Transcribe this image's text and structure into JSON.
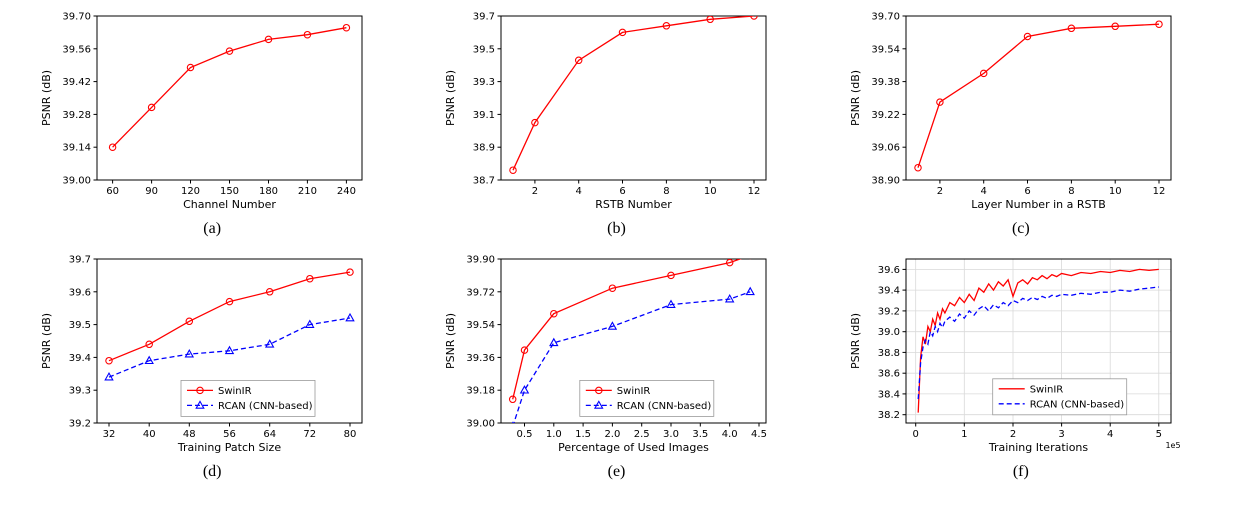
{
  "figure": {
    "background": "#ffffff",
    "axis_color": "#000000",
    "grid_color": "#d9d9d9",
    "legend_edge_color": "#999999"
  },
  "chart_data": [
    {
      "id": "a",
      "caption": "(a)",
      "type": "line",
      "title": "",
      "xlabel": "Channel Number",
      "ylabel": "PSNR (dB)",
      "xlim": [
        48,
        252
      ],
      "ylim": [
        39.0,
        39.7
      ],
      "grid": false,
      "xticks": [
        60,
        90,
        120,
        150,
        180,
        210,
        240
      ],
      "xtick_labels": [
        "60",
        "90",
        "120",
        "150",
        "180",
        "210",
        "240"
      ],
      "yticks": [
        39.0,
        39.14,
        39.28,
        39.42,
        39.56,
        39.7
      ],
      "ytick_labels": [
        "39.00",
        "39.14",
        "39.28",
        "39.42",
        "39.56",
        "39.70"
      ],
      "legend": null,
      "series": [
        {
          "name": "",
          "color": "#ff0000",
          "line": "solid",
          "marker": "circle",
          "x": [
            60,
            90,
            120,
            150,
            180,
            210,
            240
          ],
          "y": [
            39.14,
            39.31,
            39.48,
            39.55,
            39.6,
            39.62,
            39.65
          ]
        }
      ]
    },
    {
      "id": "b",
      "caption": "(b)",
      "type": "line",
      "title": "",
      "xlabel": "RSTB Number",
      "ylabel": "PSNR (dB)",
      "xlim": [
        0.45,
        12.55
      ],
      "ylim": [
        38.7,
        39.7
      ],
      "grid": false,
      "xticks": [
        2,
        4,
        6,
        8,
        10,
        12
      ],
      "xtick_labels": [
        "2",
        "4",
        "6",
        "8",
        "10",
        "12"
      ],
      "yticks": [
        38.7,
        38.9,
        39.1,
        39.3,
        39.5,
        39.7
      ],
      "ytick_labels": [
        "38.7",
        "38.9",
        "39.1",
        "39.3",
        "39.5",
        "39.7"
      ],
      "legend": null,
      "series": [
        {
          "name": "",
          "color": "#ff0000",
          "line": "solid",
          "marker": "circle",
          "x": [
            1,
            2,
            4,
            6,
            8,
            10,
            12
          ],
          "y": [
            38.76,
            39.05,
            39.43,
            39.6,
            39.64,
            39.68,
            39.7
          ]
        }
      ]
    },
    {
      "id": "c",
      "caption": "(c)",
      "type": "line",
      "title": "",
      "xlabel": "Layer Number in a RSTB",
      "ylabel": "PSNR (dB)",
      "xlim": [
        0.45,
        12.55
      ],
      "ylim": [
        38.9,
        39.7
      ],
      "grid": false,
      "xticks": [
        2,
        4,
        6,
        8,
        10,
        12
      ],
      "xtick_labels": [
        "2",
        "4",
        "6",
        "8",
        "10",
        "12"
      ],
      "yticks": [
        38.9,
        39.06,
        39.22,
        39.38,
        39.54,
        39.7
      ],
      "ytick_labels": [
        "38.90",
        "39.06",
        "39.22",
        "39.38",
        "39.54",
        "39.70"
      ],
      "legend": null,
      "series": [
        {
          "name": "",
          "color": "#ff0000",
          "line": "solid",
          "marker": "circle",
          "x": [
            1,
            2,
            4,
            6,
            8,
            10,
            12
          ],
          "y": [
            38.96,
            39.28,
            39.42,
            39.6,
            39.64,
            39.65,
            39.66
          ]
        }
      ]
    },
    {
      "id": "d",
      "caption": "(d)",
      "type": "line",
      "title": "",
      "xlabel": "Training Patch Size",
      "ylabel": "PSNR (dB)",
      "xlim": [
        29.6,
        82.4
      ],
      "ylim": [
        39.2,
        39.7
      ],
      "grid": false,
      "xticks": [
        32,
        40,
        48,
        56,
        64,
        72,
        80
      ],
      "xtick_labels": [
        "32",
        "40",
        "48",
        "56",
        "64",
        "72",
        "80"
      ],
      "yticks": [
        39.2,
        39.3,
        39.4,
        39.5,
        39.6,
        39.7
      ],
      "ytick_labels": [
        "39.2",
        "39.3",
        "39.4",
        "39.5",
        "39.6",
        "39.7"
      ],
      "legend": {
        "x": 0.57,
        "y": 0.85
      },
      "series": [
        {
          "name": "SwinIR",
          "color": "#ff0000",
          "line": "solid",
          "marker": "circle",
          "x": [
            32,
            40,
            48,
            56,
            64,
            72,
            80
          ],
          "y": [
            39.39,
            39.44,
            39.51,
            39.57,
            39.6,
            39.64,
            39.66
          ]
        },
        {
          "name": "RCAN (CNN-based)",
          "color": "#0000ff",
          "line": "dashed",
          "marker": "triangle",
          "x": [
            32,
            40,
            48,
            56,
            64,
            72,
            80
          ],
          "y": [
            39.34,
            39.39,
            39.41,
            39.42,
            39.44,
            39.5,
            39.52
          ]
        }
      ]
    },
    {
      "id": "e",
      "caption": "(e)",
      "type": "line",
      "title": "",
      "xlabel": "Percentage of Used Images",
      "ylabel": "PSNR (dB)",
      "xlim": [
        0.1,
        4.62
      ],
      "ylim": [
        39.0,
        39.9
      ],
      "grid": false,
      "xticks": [
        0.5,
        1.0,
        1.5,
        2.0,
        2.5,
        3.0,
        3.5,
        4.0,
        4.5
      ],
      "xtick_labels": [
        "0.5",
        "1.0",
        "1.5",
        "2.0",
        "2.5",
        "3.0",
        "3.5",
        "4.0",
        "4.5"
      ],
      "yticks": [
        39.0,
        39.18,
        39.36,
        39.54,
        39.72,
        39.9
      ],
      "ytick_labels": [
        "39.00",
        "39.18",
        "39.36",
        "39.54",
        "39.72",
        "39.90"
      ],
      "legend": {
        "x": 0.55,
        "y": 0.85
      },
      "series": [
        {
          "name": "SwinIR",
          "color": "#ff0000",
          "line": "solid",
          "marker": "circle",
          "x": [
            0.3,
            0.5,
            1.0,
            2.0,
            3.0,
            4.0,
            4.35
          ],
          "y": [
            39.13,
            39.4,
            39.6,
            39.74,
            39.81,
            39.88,
            39.92
          ]
        },
        {
          "name": "RCAN (CNN-based)",
          "color": "#0000ff",
          "line": "dashed",
          "marker": "triangle",
          "x": [
            0.3,
            0.5,
            1.0,
            2.0,
            3.0,
            4.0,
            4.35
          ],
          "y": [
            38.98,
            39.18,
            39.44,
            39.53,
            39.65,
            39.68,
            39.72
          ]
        }
      ]
    },
    {
      "id": "f",
      "caption": "(f)",
      "type": "line",
      "title": "",
      "xlabel": "Training Iterations",
      "ylabel": "PSNR (dB)",
      "x_offset_label": "1e5",
      "xlim": [
        -0.2,
        5.25
      ],
      "ylim": [
        38.12,
        39.7
      ],
      "grid": true,
      "xticks": [
        0,
        1,
        2,
        3,
        4,
        5
      ],
      "xtick_labels": [
        "0",
        "1",
        "2",
        "3",
        "4",
        "5"
      ],
      "yticks": [
        38.2,
        38.4,
        38.6,
        38.8,
        39.0,
        39.2,
        39.4,
        39.6
      ],
      "ytick_labels": [
        "38.2",
        "38.4",
        "38.6",
        "38.8",
        "39.0",
        "39.2",
        "39.4",
        "39.6"
      ],
      "legend": {
        "x": 0.58,
        "y": 0.84
      },
      "series": [
        {
          "name": "SwinIR",
          "color": "#ff0000",
          "line": "solid",
          "marker": "none",
          "x": [
            0.05,
            0.1,
            0.15,
            0.2,
            0.25,
            0.3,
            0.35,
            0.4,
            0.45,
            0.5,
            0.55,
            0.6,
            0.7,
            0.8,
            0.9,
            1.0,
            1.1,
            1.2,
            1.3,
            1.4,
            1.5,
            1.6,
            1.7,
            1.8,
            1.9,
            2.0,
            2.1,
            2.2,
            2.3,
            2.4,
            2.5,
            2.6,
            2.7,
            2.8,
            2.9,
            3.0,
            3.2,
            3.4,
            3.6,
            3.8,
            4.0,
            4.2,
            4.4,
            4.6,
            4.8,
            5.0
          ],
          "y": [
            38.22,
            38.75,
            38.95,
            38.88,
            39.05,
            39.0,
            39.12,
            39.06,
            39.18,
            39.12,
            39.22,
            39.18,
            39.28,
            39.25,
            39.33,
            39.28,
            39.36,
            39.3,
            39.42,
            39.38,
            39.46,
            39.4,
            39.48,
            39.44,
            39.5,
            39.34,
            39.47,
            39.5,
            39.46,
            39.52,
            39.5,
            39.54,
            39.51,
            39.55,
            39.53,
            39.56,
            39.54,
            39.57,
            39.56,
            39.58,
            39.57,
            39.59,
            39.58,
            39.6,
            39.59,
            39.6
          ]
        },
        {
          "name": "RCAN (CNN-based)",
          "color": "#0000ff",
          "line": "dashed",
          "marker": "none",
          "x": [
            0.05,
            0.1,
            0.15,
            0.2,
            0.25,
            0.3,
            0.35,
            0.4,
            0.45,
            0.5,
            0.55,
            0.6,
            0.7,
            0.8,
            0.9,
            1.0,
            1.1,
            1.2,
            1.3,
            1.4,
            1.5,
            1.6,
            1.7,
            1.8,
            1.9,
            2.0,
            2.1,
            2.2,
            2.3,
            2.4,
            2.5,
            2.6,
            2.7,
            2.8,
            2.9,
            3.0,
            3.2,
            3.4,
            3.6,
            3.8,
            4.0,
            4.2,
            4.4,
            4.6,
            4.8,
            5.0
          ],
          "y": [
            38.35,
            38.7,
            38.85,
            38.92,
            38.88,
            39.0,
            38.96,
            39.05,
            39.0,
            39.08,
            39.04,
            39.1,
            39.14,
            39.1,
            39.17,
            39.13,
            39.2,
            39.16,
            39.22,
            39.25,
            39.2,
            39.26,
            39.23,
            39.28,
            39.25,
            39.3,
            39.28,
            39.32,
            39.3,
            39.33,
            39.31,
            39.34,
            39.32,
            39.35,
            39.34,
            39.36,
            39.35,
            39.37,
            39.36,
            39.38,
            39.38,
            39.4,
            39.39,
            39.41,
            39.42,
            39.43
          ]
        }
      ]
    }
  ]
}
